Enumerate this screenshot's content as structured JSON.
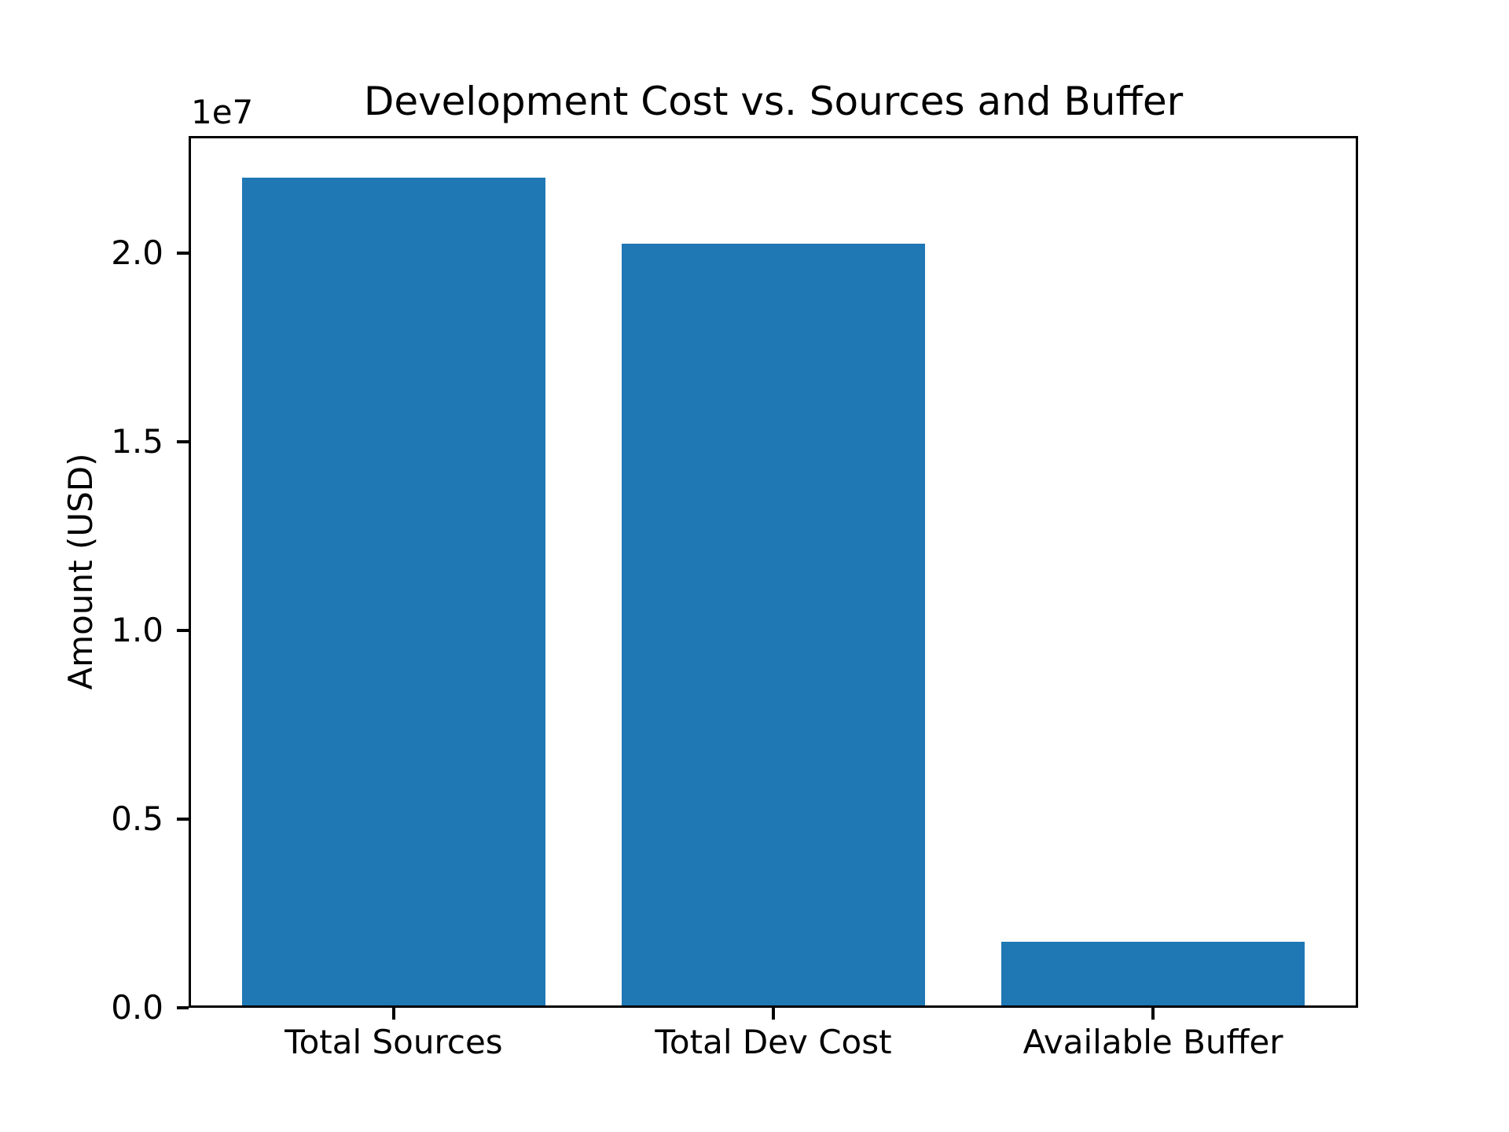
{
  "chart_data": {
    "type": "bar",
    "title": "Development Cost vs. Sources and Buffer",
    "ylabel": "Amount (USD)",
    "xlabel": "",
    "categories": [
      "Total Sources",
      "Total Dev Cost",
      "Available Buffer"
    ],
    "values": [
      22000000,
      20250000,
      1750000
    ],
    "ylim": [
      0,
      23100000
    ],
    "yticks": [
      0,
      5000000,
      10000000,
      15000000,
      20000000
    ],
    "ytick_labels": [
      "0.0",
      "0.5",
      "1.0",
      "1.5",
      "2.0"
    ],
    "offset_text": "1e7",
    "bar_color": "#1f77b4",
    "axis_color": "#000000",
    "text_color": "#000000",
    "background": "#ffffff",
    "grid": false
  }
}
